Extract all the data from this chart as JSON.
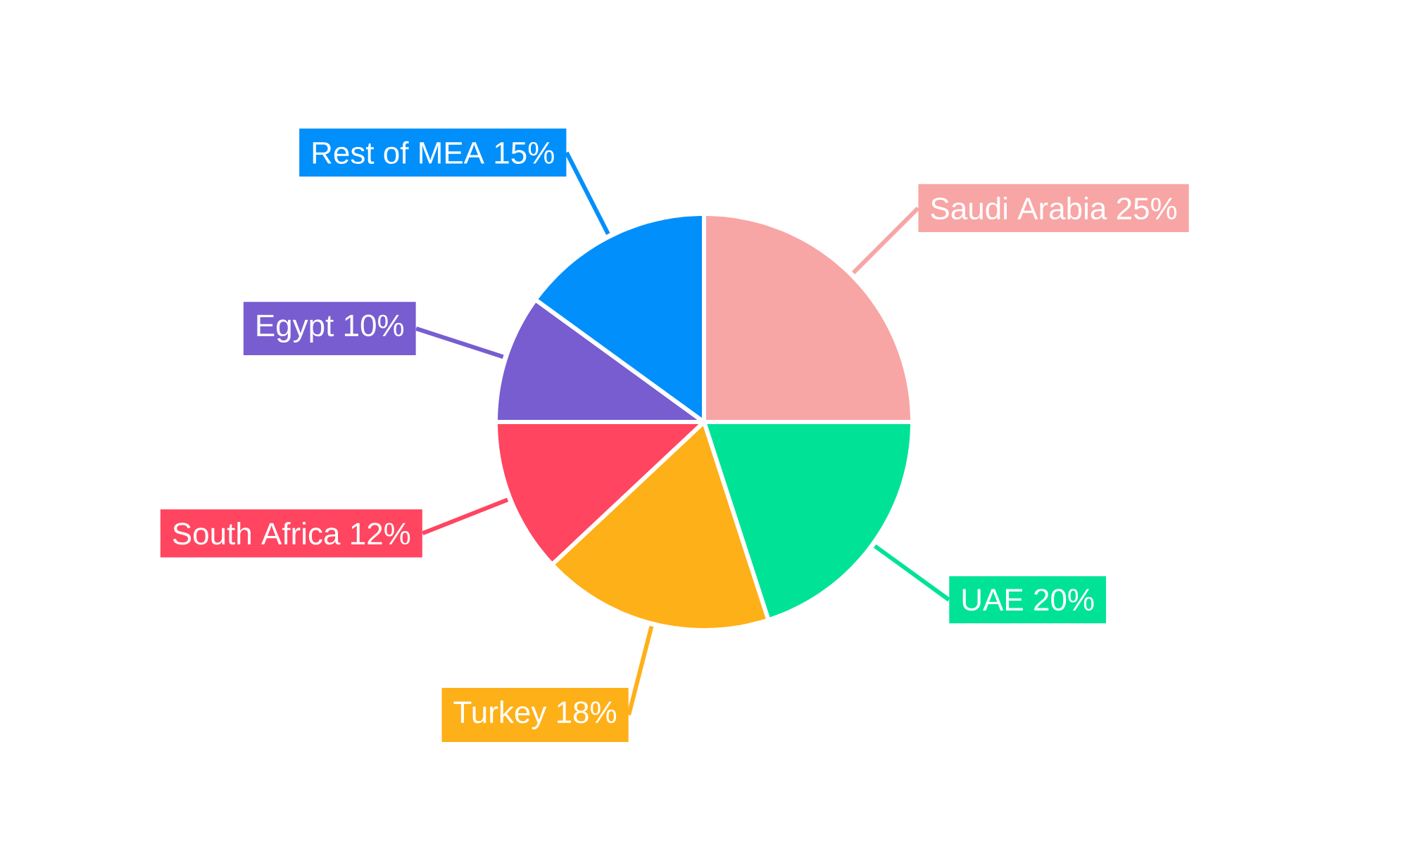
{
  "chart_data": {
    "type": "pie",
    "categories": [
      "Saudi Arabia",
      "UAE",
      "Turkey",
      "South Africa",
      "Egypt",
      "Rest of MEA"
    ],
    "values": [
      25,
      20,
      18,
      12,
      10,
      15
    ],
    "value_labels": [
      "25%",
      "20%",
      "18%",
      "12%",
      "10%",
      "15%"
    ],
    "colors": [
      "#f8a5a5",
      "#00e396",
      "#feb019",
      "#ff4560",
      "#775dd0",
      "#008ffb"
    ]
  }
}
